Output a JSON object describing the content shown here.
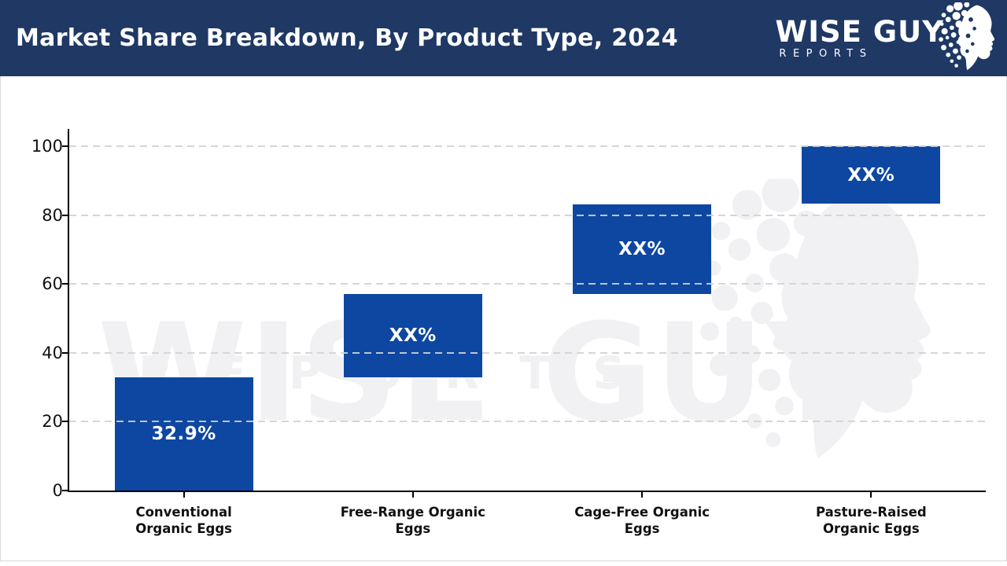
{
  "header": {
    "title": "Market Share Breakdown, By Product Type, 2024",
    "bg_color": "#1f3864",
    "logo": {
      "line1": "WISE GUY",
      "line2": "REPORTS"
    }
  },
  "watermark": {
    "line1": "WISE GUY",
    "line2": "REPORTS"
  },
  "chart_data": {
    "type": "bar",
    "variant": "floating-waterfall",
    "title": "Market Share Breakdown, By Product Type, 2024",
    "categories": [
      "Conventional\nOrganic Eggs",
      "Free-Range Organic\nEggs",
      "Cage-Free Organic\nEggs",
      "Pasture-Raised\nOrganic Eggs"
    ],
    "bars": [
      {
        "start": 0,
        "end": 32.9,
        "label": "32.9%"
      },
      {
        "start": 32.9,
        "end": 57.0,
        "label": "XX%"
      },
      {
        "start": 57.0,
        "end": 83.2,
        "label": "XX%"
      },
      {
        "start": 83.2,
        "end": 100,
        "label": "XX%"
      }
    ],
    "ylim": [
      0,
      105
    ],
    "yticks": [
      0,
      20,
      40,
      60,
      80,
      100
    ],
    "xlabel": "",
    "ylabel": "",
    "grid": "horizontal-dashed",
    "legend": "none",
    "bar_color": "#0d47a1",
    "bar_label_color": "#ffffff",
    "grid_color": "#d2d2d2",
    "axis_color": "#000000"
  }
}
